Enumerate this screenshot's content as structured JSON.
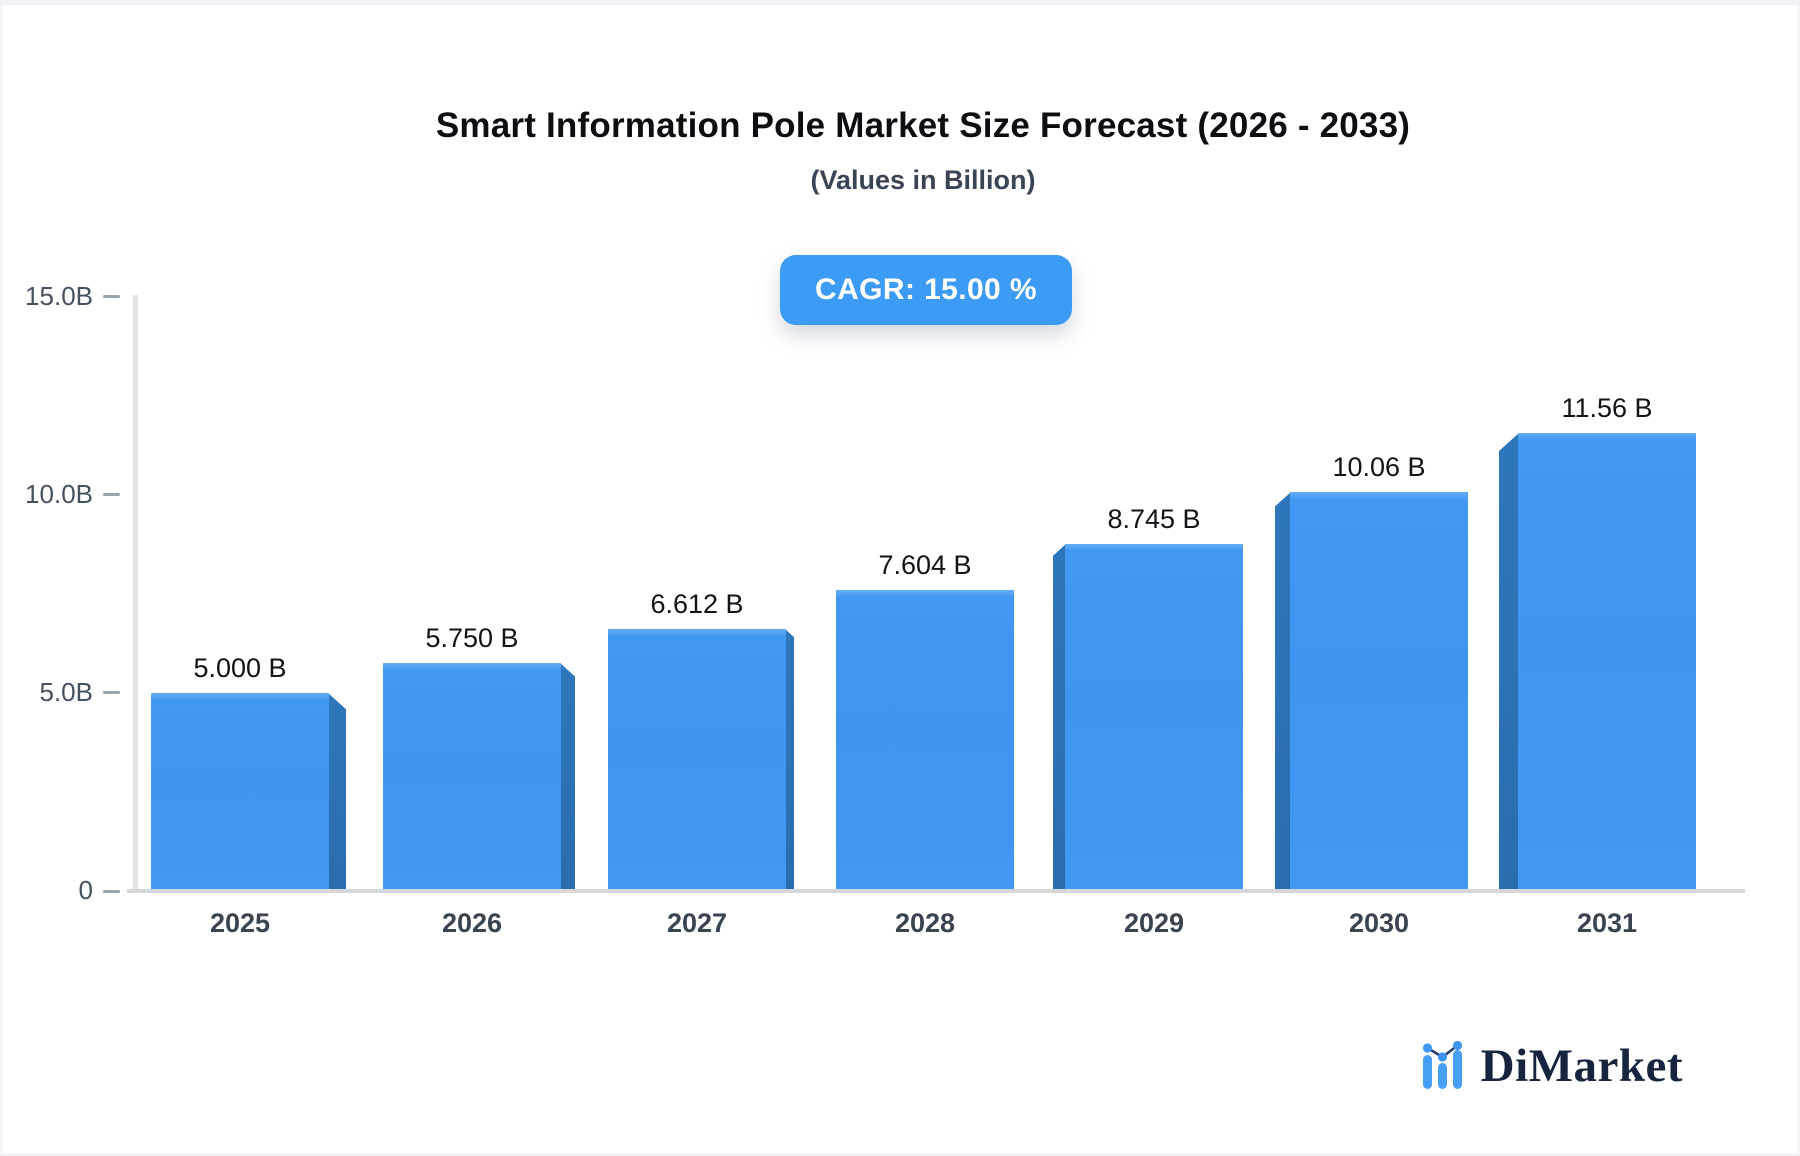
{
  "page": {
    "background": "#ffffff"
  },
  "chart_data": {
    "type": "bar",
    "title": "Smart Information Pole Market Size Forecast (2026 - 2033)",
    "subtitle": "(Values in Billion)",
    "cagr_badge": "CAGR: 15.00 %",
    "categories": [
      "2025",
      "2026",
      "2027",
      "2028",
      "2029",
      "2030",
      "2031"
    ],
    "values": [
      5.0,
      5.75,
      6.612,
      7.604,
      8.745,
      10.06,
      11.56
    ],
    "value_labels": [
      "5.000 B",
      "5.750 B",
      "6.612 B",
      "7.604 B",
      "8.745 B",
      "10.06 B",
      "11.56 B"
    ],
    "unit": "Billion",
    "ylim": [
      0,
      15
    ],
    "yticks": [
      {
        "value": 15,
        "label": "15.0B"
      },
      {
        "value": 10,
        "label": "10.0B"
      },
      {
        "value": 5,
        "label": "5.0B"
      },
      {
        "value": 0,
        "label": "0"
      }
    ],
    "gridlines": false,
    "legend": "none"
  },
  "branding": {
    "logo_text": "DiMarket"
  },
  "colors": {
    "bar_face": "#4298f1",
    "bar_face_light": "#66adf4",
    "bar_face_mid": "#3f95ee",
    "bar_side": "#2e76bb",
    "bar_side_dark": "#2a6dae",
    "badge_bg": "#3b9bf5",
    "badge_text": "#ffffff",
    "axis_line": "#e2e4e8",
    "baseline": "#d5d7db",
    "tick": "#9ba3ae",
    "tick_label": "#46505f",
    "year_label": "#3a4350",
    "value_label": "#101317",
    "title": "#0c0e12",
    "subtitle": "#3b4454",
    "logo_text_color": "#16243e",
    "logo_blue": "#47a0f5",
    "logo_line": "#24406b",
    "logo_dot": "#3e95f2"
  }
}
